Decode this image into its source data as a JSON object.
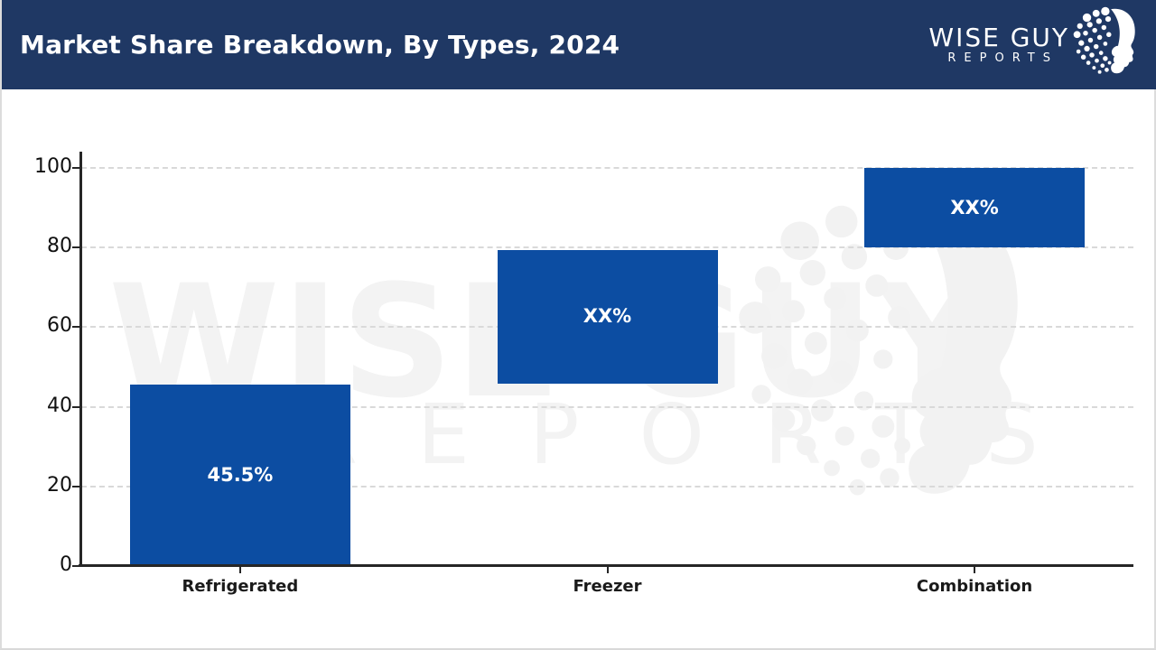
{
  "header": {
    "title": "Market Share Breakdown, By Types, 2024",
    "logo": {
      "line1": "WISE GUY",
      "line2": "REPORTS"
    }
  },
  "watermark": {
    "line1": "WISE GUY",
    "line2": "REPORTS"
  },
  "chart_data": {
    "type": "bar",
    "subtype": "floating-waterfall",
    "title": "Market Share Breakdown, By Types, 2024",
    "categories": [
      "Refrigerated",
      "Freezer",
      "Combination"
    ],
    "bars": [
      {
        "category": "Refrigerated",
        "start": 0,
        "end": 45.5,
        "label": "45.5%"
      },
      {
        "category": "Freezer",
        "start": 45.8,
        "end": 79.3,
        "label": "XX%"
      },
      {
        "category": "Combination",
        "start": 80,
        "end": 100,
        "label": "XX%"
      }
    ],
    "xlabel": "",
    "ylabel": "",
    "ylim": [
      0,
      100
    ],
    "yticks": [
      0,
      20,
      40,
      60,
      80,
      100
    ],
    "grid": "horizontal-dashed",
    "legend": "none",
    "bar_color": "#0c4da2",
    "bar_label_color": "#ffffff"
  },
  "colors": {
    "header_bg": "#1f3864",
    "bar": "#0c4da2",
    "grid": "#d9d9d9",
    "axis": "#262626",
    "text": "#1a1a1a",
    "watermark": "#f2f2f2"
  }
}
